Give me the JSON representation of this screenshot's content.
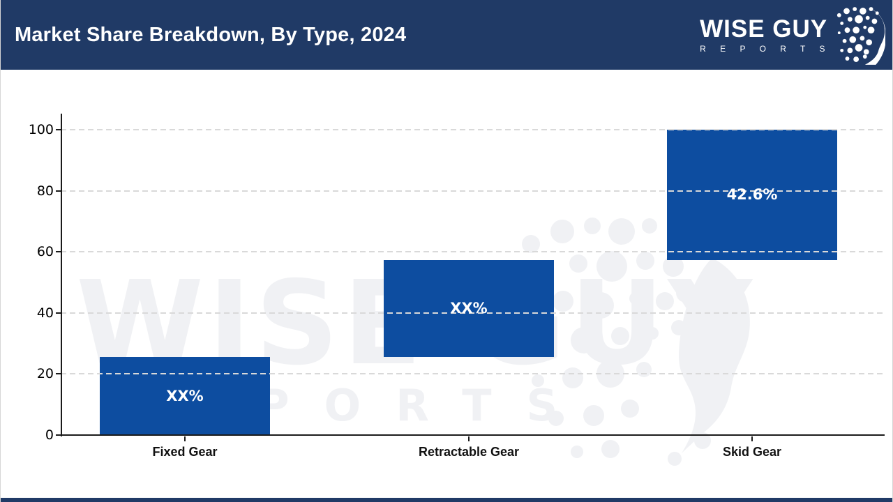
{
  "header": {
    "title": "Market Share Breakdown, By Type, 2024",
    "logo_line1": "WISE GUY",
    "logo_line2": "R E P O R T S"
  },
  "watermark": {
    "line1": "WISE GUY",
    "line2": "REPORTS"
  },
  "colors": {
    "header_bg": "#203a66",
    "bar": "#0d4da0",
    "grid": "#d9d9d9",
    "axis": "#1a1a1a",
    "bar_label_text": "#ffffff",
    "watermark": "#f0f1f4"
  },
  "chart_data": {
    "type": "bar",
    "subtype": "floating stacked percentage bars (each bar starts where previous ended, total 100)",
    "title": "Market Share Breakdown, By Type, 2024",
    "categories": [
      "Fixed Gear",
      "Retractable Gear",
      "Skid Gear"
    ],
    "series": [
      {
        "name": "Market share (%)",
        "segments": [
          {
            "category": "Fixed Gear",
            "start": 0,
            "end": 25.6,
            "value_label": "XX%"
          },
          {
            "category": "Retractable Gear",
            "start": 25.6,
            "end": 57.4,
            "value_label": "XX%"
          },
          {
            "category": "Skid Gear",
            "start": 57.4,
            "end": 100,
            "value_label": "42.6%"
          }
        ]
      }
    ],
    "xlabel": "",
    "ylabel": "",
    "ylim": [
      0,
      100
    ],
    "yticks": [
      0,
      20,
      40,
      60,
      80,
      100
    ],
    "grid": "horizontal dashed gridlines drawn over bars",
    "legend": "none"
  }
}
